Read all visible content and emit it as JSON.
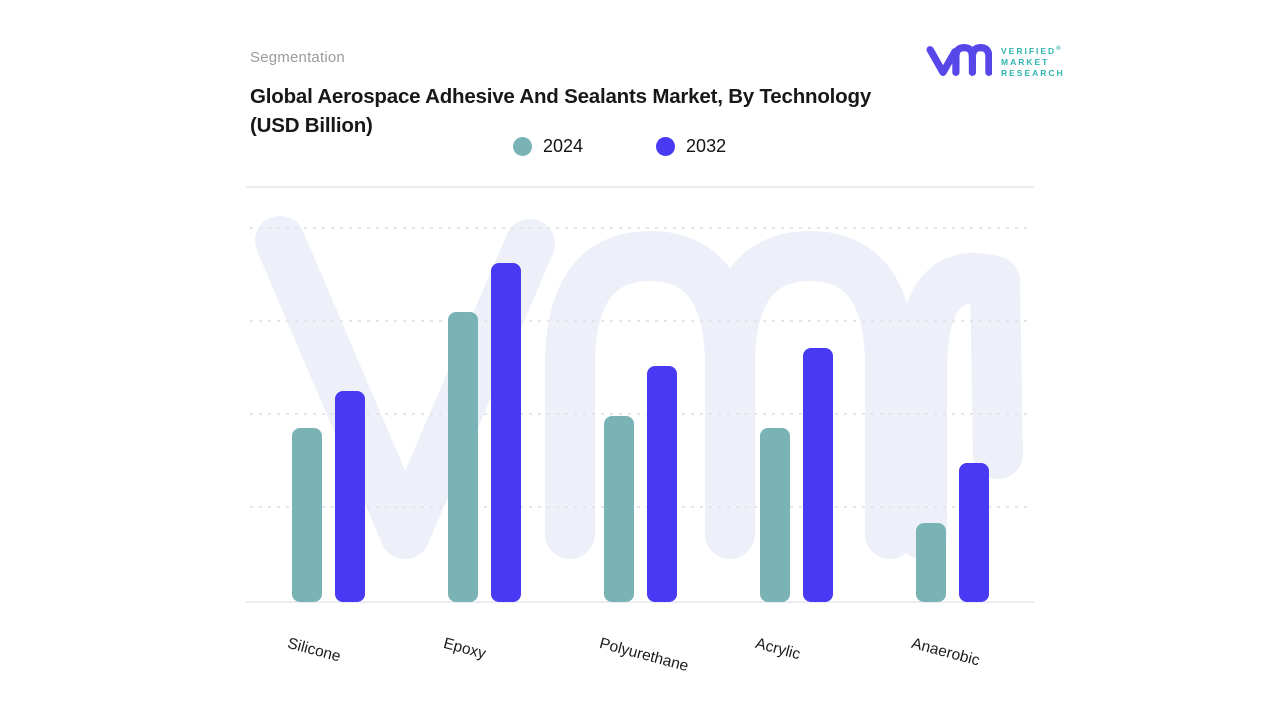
{
  "header": {
    "eyebrow": "Segmentation",
    "title_line1": "Global Aerospace Adhesive And Sealants Market, By Technology",
    "title_line2": "(USD Billion)"
  },
  "logo": {
    "mark": "vm-monogram",
    "mark_color": "#5747e9",
    "text_color": "#2eb5ad",
    "line1": "VERIFIED",
    "line2": "MARKET",
    "line3": "RESEARCH",
    "registered_symbol": "®"
  },
  "legend": {
    "items": [
      {
        "label": "2024",
        "color": "#7ab3b5"
      },
      {
        "label": "2032",
        "color": "#4839f2"
      }
    ]
  },
  "watermark": {
    "text": "vmr",
    "color": "#eef0f9"
  },
  "chart_data": {
    "type": "bar",
    "title": "Global Aerospace Adhesive And Sealants Market, By Technology (USD Billion)",
    "categories": [
      "Silicone",
      "Epoxy",
      "Polyurethane",
      "Acrylic",
      "Anaerobic"
    ],
    "series": [
      {
        "name": "2024",
        "color": "#7ab3b5",
        "values": [
          1.87,
          3.12,
          2.0,
          1.87,
          0.85
        ]
      },
      {
        "name": "2032",
        "color": "#4839f2",
        "values": [
          2.27,
          3.65,
          2.54,
          2.73,
          1.49
        ]
      }
    ],
    "xlabel": "",
    "ylabel": "USD Billion",
    "y_axis_tick_labels": "none",
    "value_units": "estimated in gridline intervals (axis unlabeled)",
    "ylim": [
      0,
      4.5
    ],
    "grid": "horizontal-dashed",
    "legend_position": "top-center",
    "bar_corner_radius_px": 8,
    "x_label_rotation_deg": 15
  }
}
